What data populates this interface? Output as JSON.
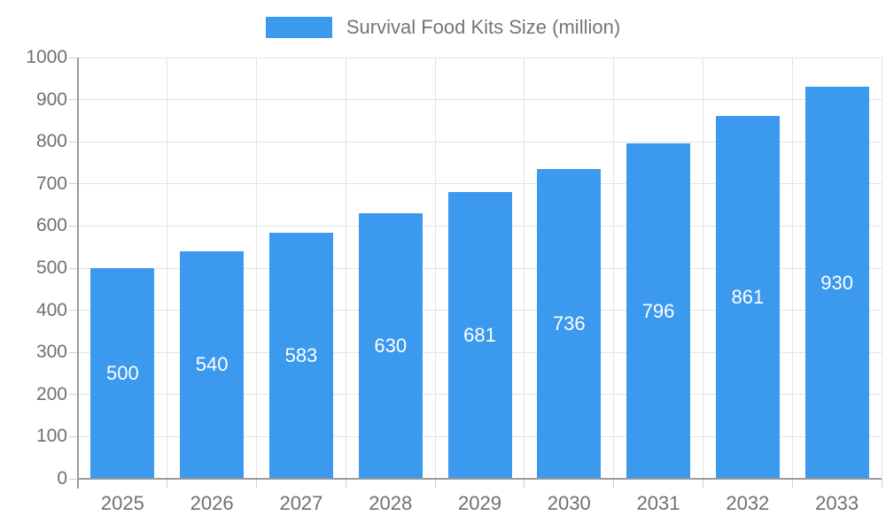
{
  "legend": {
    "series_label": "Survival Food Kits Size (million)"
  },
  "colors": {
    "bar": "#3B99EE",
    "axis": "#9b9b9b",
    "grid": "#e4e4e4",
    "tick": "#cfcfcf",
    "text": "#707070",
    "value_label": "#ffffff",
    "background": "#ffffff"
  },
  "chart_data": {
    "type": "bar",
    "title": "",
    "xlabel": "",
    "ylabel": "",
    "categories": [
      "2025",
      "2026",
      "2027",
      "2028",
      "2029",
      "2030",
      "2031",
      "2032",
      "2033"
    ],
    "series": [
      {
        "name": "Survival Food Kits Size (million)",
        "values": [
          500,
          540,
          583,
          630,
          681,
          736,
          796,
          861,
          930
        ]
      }
    ],
    "value_labels_shown": true,
    "ylim": [
      0,
      1000
    ],
    "y_ticks": [
      0,
      100,
      200,
      300,
      400,
      500,
      600,
      700,
      800,
      900,
      1000
    ],
    "grid": true,
    "legend_position": "top"
  }
}
